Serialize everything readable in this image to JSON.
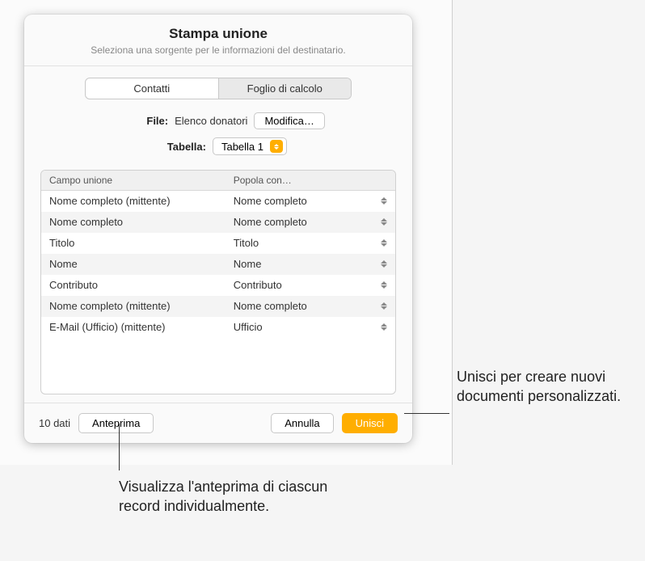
{
  "dialog": {
    "title": "Stampa unione",
    "subtitle": "Seleziona una sorgente per le informazioni del destinatario.",
    "tabs": {
      "contacts": "Contatti",
      "spreadsheet": "Foglio di calcolo",
      "selected": "spreadsheet"
    },
    "file_row": {
      "label": "File:",
      "value": "Elenco donatori",
      "button": "Modifica…"
    },
    "table_row": {
      "label": "Tabella:",
      "value": "Tabella 1"
    },
    "columns": {
      "merge_field": "Campo unione",
      "populate": "Popola con…"
    },
    "rows": [
      {
        "field": "Nome completo (mittente)",
        "populate": "Nome completo"
      },
      {
        "field": "Nome completo",
        "populate": "Nome completo"
      },
      {
        "field": "Titolo",
        "populate": "Titolo"
      },
      {
        "field": "Nome",
        "populate": "Nome"
      },
      {
        "field": "Contributo",
        "populate": "Contributo"
      },
      {
        "field": "Nome completo (mittente)",
        "populate": "Nome completo"
      },
      {
        "field": "E-Mail (Ufficio) (mittente)",
        "populate": "Ufficio"
      }
    ],
    "footer": {
      "record_count": "10 dati",
      "preview": "Anteprima",
      "cancel": "Annulla",
      "merge": "Unisci"
    }
  },
  "callouts": {
    "merge": "Unisci per creare nuovi documenti personalizzati.",
    "preview": "Visualizza l'anteprima di ciascun record individualmente."
  },
  "colors": {
    "accent": "#ffae00",
    "dialog_bg": "#fafafa",
    "border": "#c8c8c8"
  }
}
